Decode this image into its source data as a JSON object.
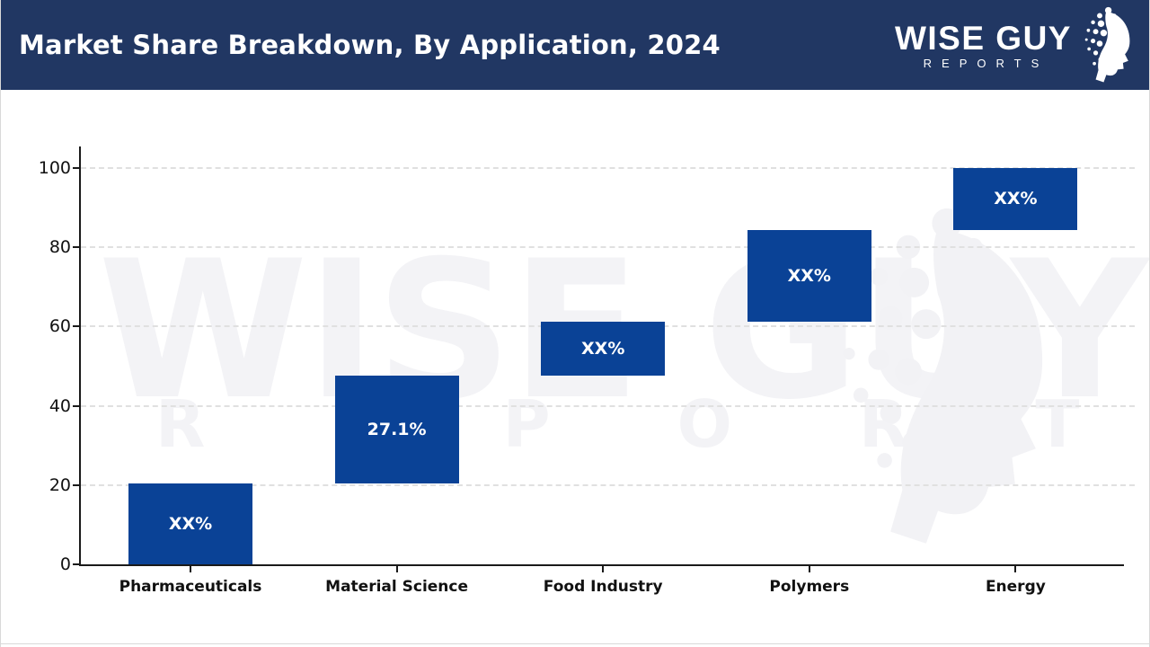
{
  "header": {
    "title": "Market Share Breakdown, By Application, 2024",
    "logo": {
      "line1": "WISE GUY",
      "line2": "REPORTS"
    }
  },
  "watermark": {
    "line1": "WISE GUY",
    "line2": "R E P O R T S"
  },
  "colors": {
    "header_bg": "#213763",
    "bar_blue": "#0a4296",
    "axis_black": "#1a1a1a",
    "gridline_gray": "#e0e0e0",
    "watermark_gray": "#f3f3f6",
    "page_border_gray": "#d9d9d9",
    "label_white": "#ffffff"
  },
  "chart_data": {
    "type": "bar",
    "subtype": "waterfall",
    "title": "Market Share Breakdown, By Application, 2024",
    "categories": [
      "Pharmaceuticals",
      "Material Science",
      "Food Industry",
      "Polymers",
      "Energy"
    ],
    "segments": [
      {
        "category": "Pharmaceuticals",
        "start": 0,
        "value": 20.5,
        "label": "XX%"
      },
      {
        "category": "Material Science",
        "start": 20.5,
        "value": 27.1,
        "label": "27.1%"
      },
      {
        "category": "Food Industry",
        "start": 47.6,
        "value": 13.6,
        "label": "XX%"
      },
      {
        "category": "Polymers",
        "start": 61.2,
        "value": 23.2,
        "label": "XX%"
      },
      {
        "category": "Energy",
        "start": 84.4,
        "value": 15.6,
        "label": "XX%"
      }
    ],
    "y_ticks": [
      0,
      20,
      40,
      60,
      80,
      100
    ],
    "ylim": [
      0,
      105
    ],
    "xlabel": "",
    "ylabel": "",
    "grid": "horizontal-dashed",
    "legend": "none",
    "bar_color": "#0a4296",
    "value_label_color": "#ffffff"
  }
}
